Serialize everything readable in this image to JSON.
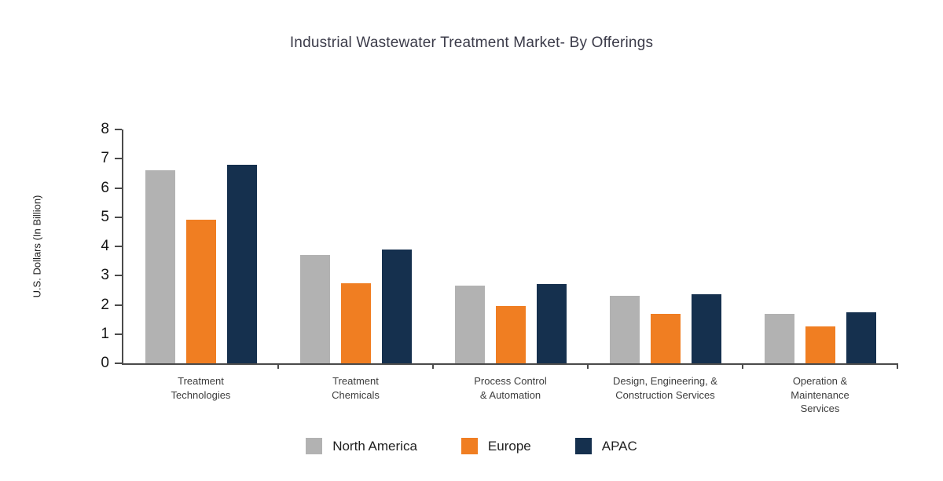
{
  "chart_data": {
    "type": "bar",
    "title": "Industrial Wastewater Treatment Market- By Offerings",
    "xlabel": "",
    "ylabel": "U.S. Dollars (In Billion)",
    "ylim": [
      0,
      8
    ],
    "yticks": [
      0,
      1,
      2,
      3,
      4,
      5,
      6,
      7,
      8
    ],
    "grid": false,
    "legend_position": "bottom",
    "categories": [
      "Treatment\nTechnologies",
      "Treatment\nChemicals",
      "Process Control\n& Automation",
      "Design, Engineering, &\nConstruction Services",
      "Operation &\nMaintenance\nServices"
    ],
    "series": [
      {
        "name": "North America",
        "color": "#b2b2b2",
        "values": [
          6.6,
          3.7,
          2.65,
          2.3,
          1.7
        ]
      },
      {
        "name": "Europe",
        "color": "#f07e22",
        "values": [
          4.9,
          2.75,
          1.95,
          1.7,
          1.25
        ]
      },
      {
        "name": "APAC",
        "color": "#15304e",
        "values": [
          6.8,
          3.9,
          2.7,
          2.35,
          1.75
        ]
      }
    ],
    "colors": {
      "axis": "#4a4a4a",
      "title_text": "#3b3b49",
      "tick_text": "#161616",
      "category_text": "#3d3d3d"
    }
  }
}
